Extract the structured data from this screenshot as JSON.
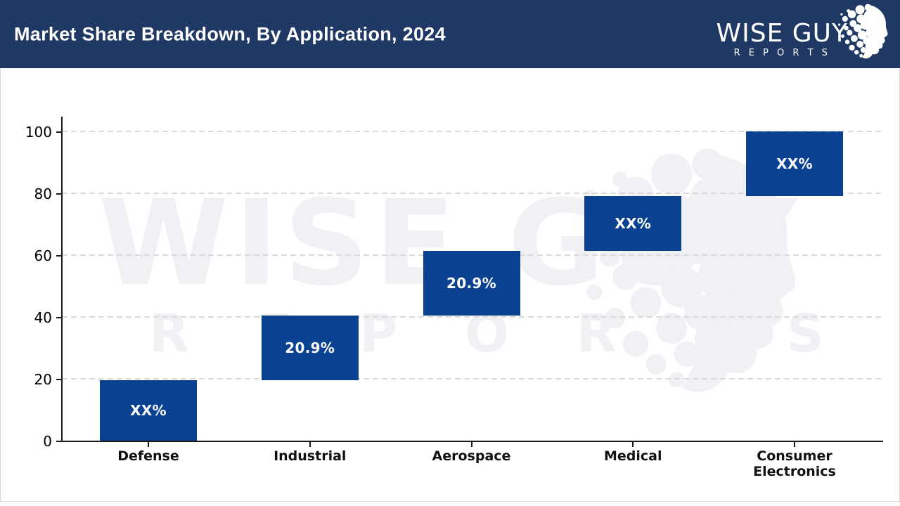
{
  "header": {
    "title": "Market Share Breakdown, By Application, 2024",
    "logo": {
      "line1": "WISE GUY",
      "line2": "R E P O R T S"
    }
  },
  "watermark": {
    "line1": "WISE GUY",
    "line2": "R E P O R T S"
  },
  "chart_data": {
    "type": "bar",
    "subtype": "floating-waterfall",
    "title": "Market Share Breakdown, By Application, 2024",
    "categories": [
      "Defense",
      "Industrial",
      "Aerospace",
      "Medical",
      "Consumer Electronics"
    ],
    "segments": [
      {
        "category": "Defense",
        "start": 0,
        "end": 19.6,
        "label": "XX%"
      },
      {
        "category": "Industrial",
        "start": 19.6,
        "end": 40.5,
        "label": "20.9%"
      },
      {
        "category": "Aerospace",
        "start": 40.5,
        "end": 61.4,
        "label": "20.9%"
      },
      {
        "category": "Medical",
        "start": 61.4,
        "end": 79.1,
        "label": "XX%"
      },
      {
        "category": "Consumer Electronics",
        "start": 79.1,
        "end": 100,
        "label": "XX%"
      }
    ],
    "yticks": [
      0,
      20,
      40,
      60,
      80,
      100
    ],
    "yticklabels": [
      "0",
      "20",
      "40",
      "60",
      "80",
      "100"
    ],
    "ylim": [
      0,
      105
    ],
    "xlabel": "",
    "ylabel": "",
    "grid": "horizontal-dashed",
    "legend": "none"
  },
  "colors": {
    "header_bg": "#1F3864",
    "bar": "#0B4191",
    "grid": "#DADADA",
    "axis": "#1A1A1A",
    "watermark": "#F0F1F4",
    "border": "#D9D9D9"
  }
}
